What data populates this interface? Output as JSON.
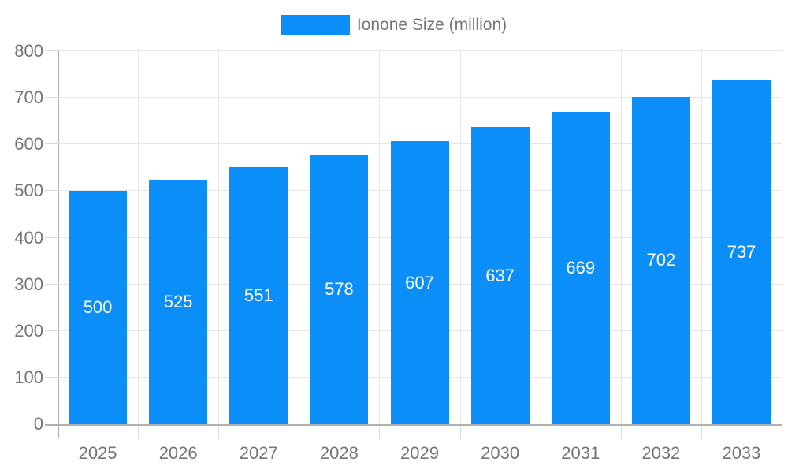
{
  "legend": {
    "label": "Ionone Size (million)",
    "swatch_color": "#0c8ef8"
  },
  "chart_data": {
    "type": "bar",
    "title": "",
    "categories": [
      "2025",
      "2026",
      "2027",
      "2028",
      "2029",
      "2030",
      "2031",
      "2032",
      "2033"
    ],
    "series": [
      {
        "name": "Ionone Size (million)",
        "values": [
          500,
          525,
          551,
          578,
          607,
          637,
          669,
          702,
          737
        ]
      }
    ],
    "ylim": [
      0,
      800
    ],
    "ytick_interval": 100,
    "ytick_labels": [
      "0",
      "100",
      "200",
      "300",
      "400",
      "500",
      "600",
      "700",
      "800"
    ],
    "grid": true,
    "legend_position": "top-center",
    "value_label_position": "inside-center",
    "colors": {
      "bar": "#0c8ef8",
      "value_label": "#ffffff",
      "gridline": "#e6e6e6",
      "axis_line": "#b0b0b0",
      "tick": "#d9d9d9",
      "tick_label": "#757575",
      "legend_text": "#757575",
      "background": "#ffffff"
    }
  }
}
